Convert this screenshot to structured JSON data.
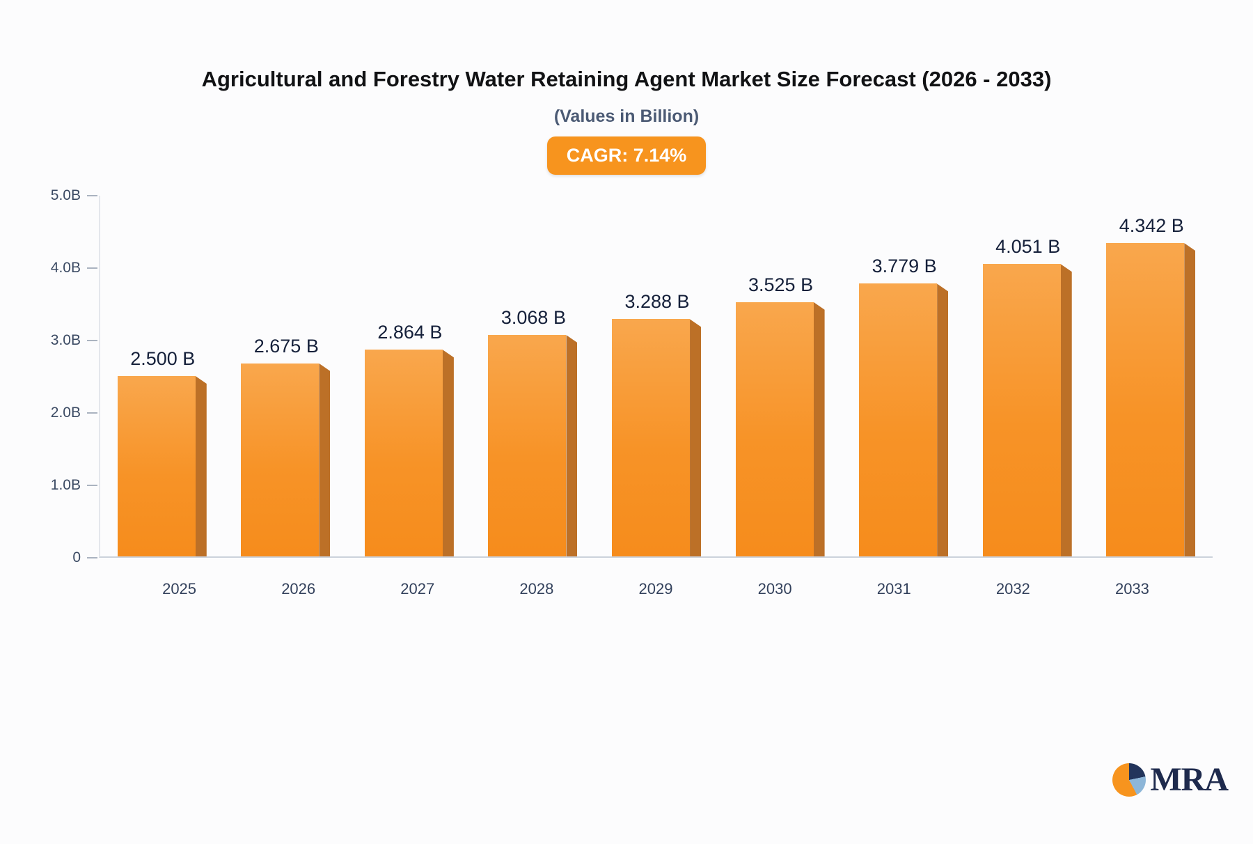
{
  "chart": {
    "title": "Agricultural and Forestry Water Retaining Agent Market Size Forecast (2026 - 2033)",
    "subtitle": "(Values in Billion)",
    "cagr_label": "CAGR: 7.14%"
  },
  "chart_data": {
    "type": "bar",
    "title": "Agricultural and Forestry Water Retaining Agent Market Size Forecast (2026 - 2033)",
    "subtitle": "(Values in Billion)",
    "cagr_percent": 7.14,
    "categories": [
      "2025",
      "2026",
      "2027",
      "2028",
      "2029",
      "2030",
      "2031",
      "2032",
      "2033"
    ],
    "values": [
      2.5,
      2.675,
      2.864,
      3.068,
      3.288,
      3.525,
      3.779,
      4.051,
      4.342
    ],
    "value_labels": [
      "2.500 B",
      "2.675 B",
      "2.864 B",
      "3.068 B",
      "3.288 B",
      "3.525 B",
      "3.779 B",
      "4.051 B",
      "4.342 B"
    ],
    "xlabel": "",
    "ylabel": "",
    "ylim": [
      0,
      5.0
    ],
    "yticks": [
      "5.0B",
      "4.0B",
      "3.0B",
      "2.0B",
      "1.0B",
      "0"
    ],
    "grid": false,
    "legend": false,
    "bar_color": "#f7941e",
    "bar_side_color": "#bc7027",
    "badge_color": "#f7941e"
  },
  "logo": {
    "text": "MRA",
    "icon": "pie-globe-icon",
    "colors": {
      "navy": "#22345b",
      "light_blue": "#8db6d8",
      "orange": "#f7941e"
    }
  }
}
